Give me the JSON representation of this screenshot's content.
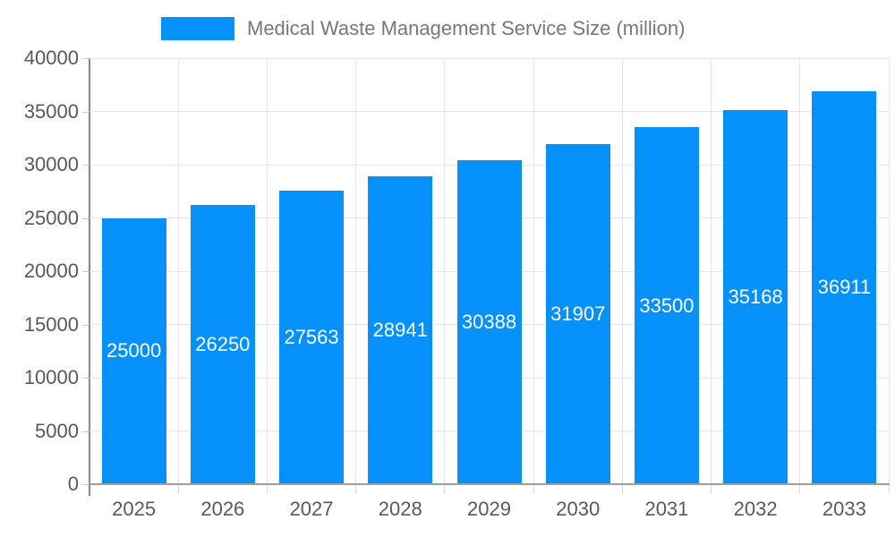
{
  "colors": {
    "bar": "#0590fa",
    "grid": "#e6e6e6",
    "axis_label": "#58595b",
    "title_text": "#777777",
    "value_label": "#ffffff"
  },
  "chart_data": {
    "type": "bar",
    "title": "Medical Waste Management Service Size (million)",
    "categories": [
      "2025",
      "2026",
      "2027",
      "2028",
      "2029",
      "2030",
      "2031",
      "2032",
      "2033"
    ],
    "values": [
      25000,
      26250,
      27563,
      28941,
      30388,
      31907,
      33500,
      35168,
      36911
    ],
    "value_labels": [
      "25000",
      "26250",
      "27563",
      "28941",
      "30388",
      "31907",
      "33500",
      "35168",
      "36911"
    ],
    "xlabel": "",
    "ylabel": "",
    "ylim": [
      0,
      40000
    ],
    "ytick_step": 5000,
    "ytick_labels": [
      "0",
      "5000",
      "10000",
      "15000",
      "20000",
      "25000",
      "30000",
      "35000",
      "40000"
    ],
    "grid": true,
    "legend_position": "top",
    "value_label_placement": "center-of-bar"
  }
}
